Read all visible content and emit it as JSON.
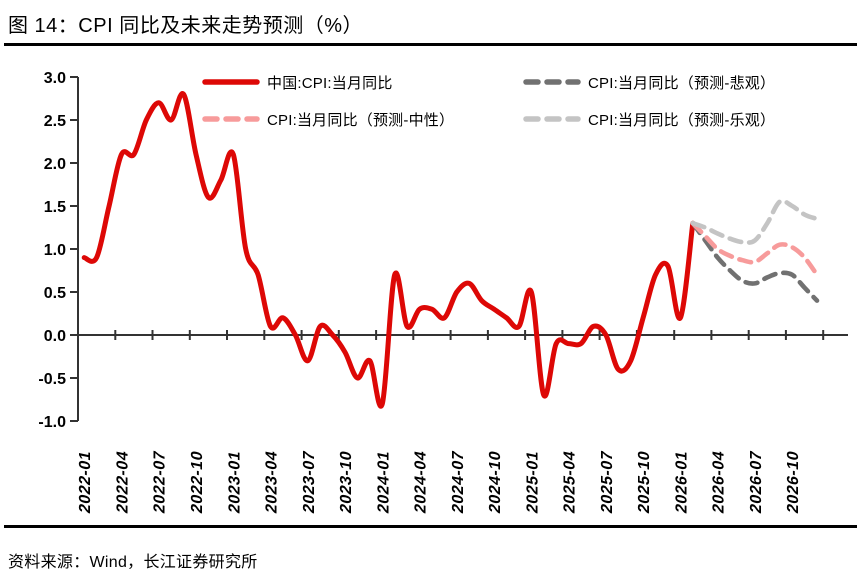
{
  "title": "图 14：CPI 同比及未来走势预测（%）",
  "source": "资料来源：Wind，长江证券研究所",
  "legend": {
    "items": [
      {
        "label": "中国:CPI:当月同比",
        "color": "#dd0806",
        "dashed": false
      },
      {
        "label": "CPI:当月同比（预测-悲观）",
        "color": "#717171",
        "dashed": true
      },
      {
        "label": "CPI:当月同比（预测-中性）",
        "color": "#f79b9b",
        "dashed": true
      },
      {
        "label": "CPI:当月同比（预测-乐观）",
        "color": "#c4c4c4",
        "dashed": true
      }
    ]
  },
  "chart_data": {
    "type": "line",
    "title": "CPI 同比及未来走势预测",
    "unit": "%",
    "ylim": [
      -1.0,
      3.0
    ],
    "y_ticks": [
      3.0,
      2.5,
      2.0,
      1.5,
      1.0,
      0.5,
      0.0,
      -0.5,
      -1.0
    ],
    "x_tick_labels": [
      "2022-01",
      "2022-04",
      "2022-07",
      "2022-10",
      "2023-01",
      "2023-04",
      "2023-07",
      "2023-10",
      "2024-01",
      "2024-04",
      "2024-07",
      "2024-10",
      "2025-01",
      "2025-04",
      "2025-07",
      "2025-10",
      "2026-01",
      "2026-04",
      "2026-07",
      "2026-10"
    ],
    "grid": false,
    "legend_position": "top",
    "series": [
      {
        "id": "actual",
        "name": "中国:CPI:当月同比",
        "color": "#dd0806",
        "dashed": false,
        "start_month": "2022-01",
        "values": [
          0.9,
          0.9,
          1.5,
          2.1,
          2.1,
          2.5,
          2.7,
          2.5,
          2.8,
          2.1,
          1.6,
          1.8,
          2.1,
          1.0,
          0.7,
          0.1,
          0.2,
          0.0,
          -0.3,
          0.1,
          0.0,
          -0.2,
          -0.5,
          -0.3,
          -0.8,
          0.7,
          0.1,
          0.3,
          0.3,
          0.2,
          0.5,
          0.6,
          0.4,
          0.3,
          0.2,
          0.1,
          0.5,
          -0.7,
          -0.1,
          -0.1,
          -0.1,
          0.1,
          0.0,
          -0.4,
          -0.3,
          0.2,
          0.7,
          0.8,
          0.2,
          1.3
        ]
      },
      {
        "id": "forecast-pessimistic",
        "name": "CPI:当月同比（预测-悲观）",
        "color": "#717171",
        "dashed": true,
        "start_month": "2026-02",
        "values": [
          1.3,
          1.1,
          0.9,
          0.75,
          0.63,
          0.6,
          0.67,
          0.72,
          0.7,
          0.55,
          0.4
        ]
      },
      {
        "id": "forecast-neutral",
        "name": "CPI:当月同比（预测-中性）",
        "color": "#f79b9b",
        "dashed": true,
        "start_month": "2026-02",
        "values": [
          1.3,
          1.15,
          1.0,
          0.92,
          0.87,
          0.85,
          0.95,
          1.05,
          1.02,
          0.9,
          0.7
        ]
      },
      {
        "id": "forecast-optimistic",
        "name": "CPI:当月同比（预测-乐观）",
        "color": "#c4c4c4",
        "dashed": true,
        "start_month": "2026-02",
        "values": [
          1.3,
          1.25,
          1.18,
          1.12,
          1.08,
          1.1,
          1.3,
          1.55,
          1.5,
          1.4,
          1.35
        ]
      }
    ]
  }
}
